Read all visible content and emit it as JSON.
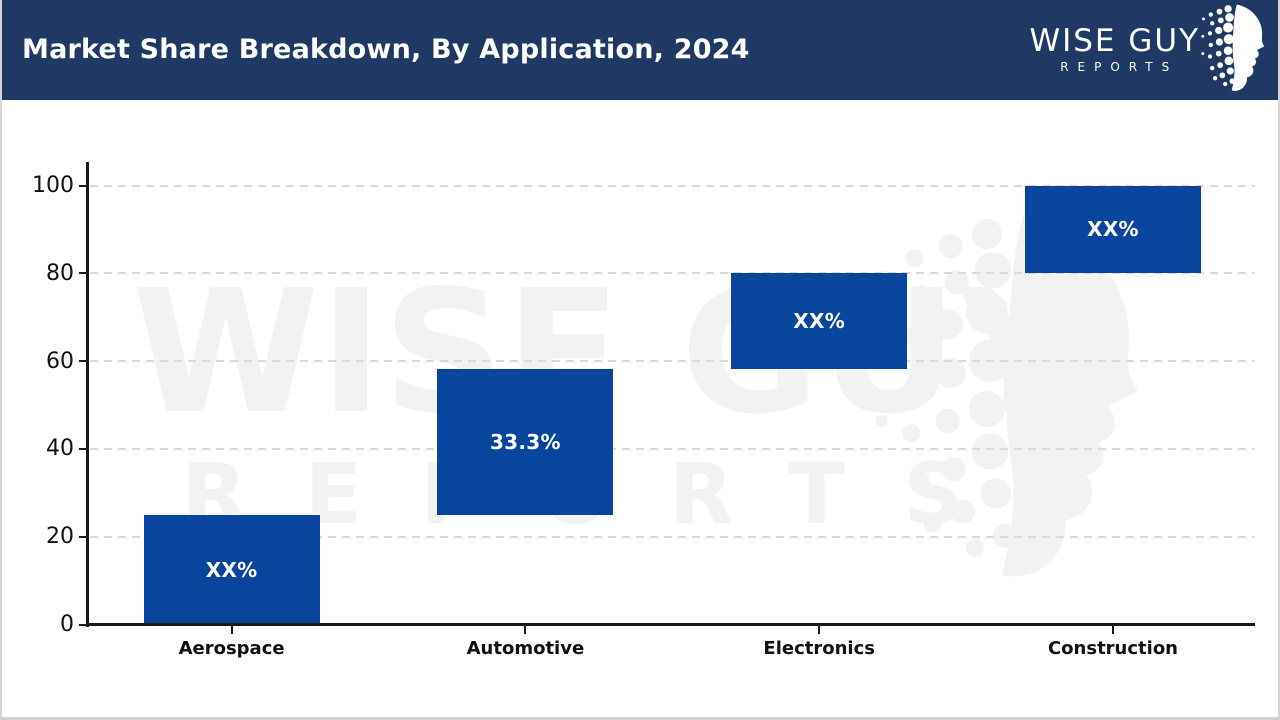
{
  "header": {
    "title": "Market Share Breakdown, By Application, 2024",
    "logo": {
      "wordmark": "WISE GUY",
      "subtext": "REPORTS",
      "face_icon": "dotted-face-profile"
    }
  },
  "watermark": {
    "line1": "WISE GUY",
    "line2": "REPORTS",
    "face_icon": "dotted-face-profile"
  },
  "chart_data": {
    "type": "bar",
    "subtype": "floating-segment-waterfall",
    "title": "Market Share Breakdown, By Application, 2024",
    "categories": [
      "Aerospace",
      "Automotive",
      "Electronics",
      "Construction"
    ],
    "series": [
      {
        "name": "Market share (%)",
        "segments": [
          {
            "category": "Aerospace",
            "from": 0,
            "to": 25,
            "label": "XX%"
          },
          {
            "category": "Automotive",
            "from": 25,
            "to": 58.3,
            "label": "33.3%"
          },
          {
            "category": "Electronics",
            "from": 58.3,
            "to": 80,
            "label": "XX%"
          },
          {
            "category": "Construction",
            "from": 80,
            "to": 100,
            "label": "XX%"
          }
        ]
      }
    ],
    "yticks": [
      0,
      20,
      40,
      60,
      80,
      100
    ],
    "ylim": [
      0,
      105
    ],
    "xlabel": "",
    "ylabel": "",
    "grid": "horizontal-dashed",
    "legend": "none"
  },
  "colors": {
    "header_bg": "#1f3864",
    "bar": "#09449d",
    "axis": "#1a1a1a",
    "tick_text": "#111111",
    "gridline": "#d9d9d9",
    "watermark": "#f2f2f2",
    "bar_label": "#ffffff"
  }
}
